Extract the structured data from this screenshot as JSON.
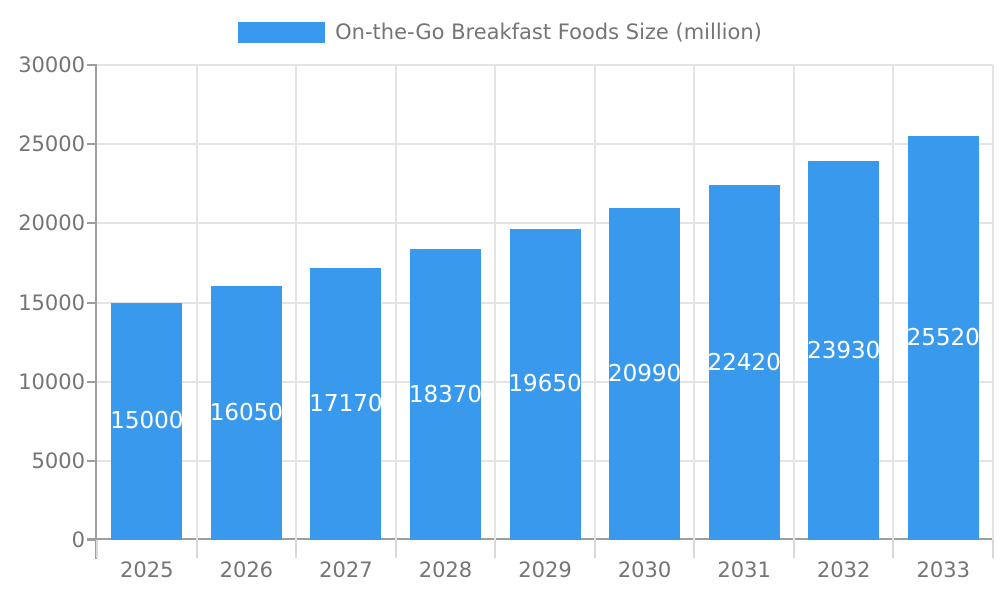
{
  "chart_data": {
    "type": "bar",
    "title": "On-the-Go Breakfast Foods Size (million)",
    "legend": {
      "label": "On-the-Go Breakfast Foods Size (million)",
      "position": "top-center"
    },
    "categories": [
      "2025",
      "2026",
      "2027",
      "2028",
      "2029",
      "2030",
      "2031",
      "2032",
      "2033"
    ],
    "values": [
      15000,
      16050,
      17170,
      18370,
      19650,
      20990,
      22420,
      23930,
      25520
    ],
    "bar_value_labels": [
      "15000",
      "16050",
      "17170",
      "18370",
      "19650",
      "20990",
      "22420",
      "23930",
      "25520"
    ],
    "xlabel": "",
    "ylabel": "",
    "ylim": [
      0,
      30000
    ],
    "yticks": [
      0,
      5000,
      10000,
      15000,
      20000,
      25000,
      30000
    ],
    "grid": true,
    "colors": {
      "bar": "#3999EC",
      "bar_value_label": "#ffffff",
      "axis_text": "#757575",
      "axis_line": "#9e9e9e",
      "gridline": "#e4e4e4",
      "minor_tick": "#d9d9d9",
      "background": "#ffffff"
    }
  }
}
